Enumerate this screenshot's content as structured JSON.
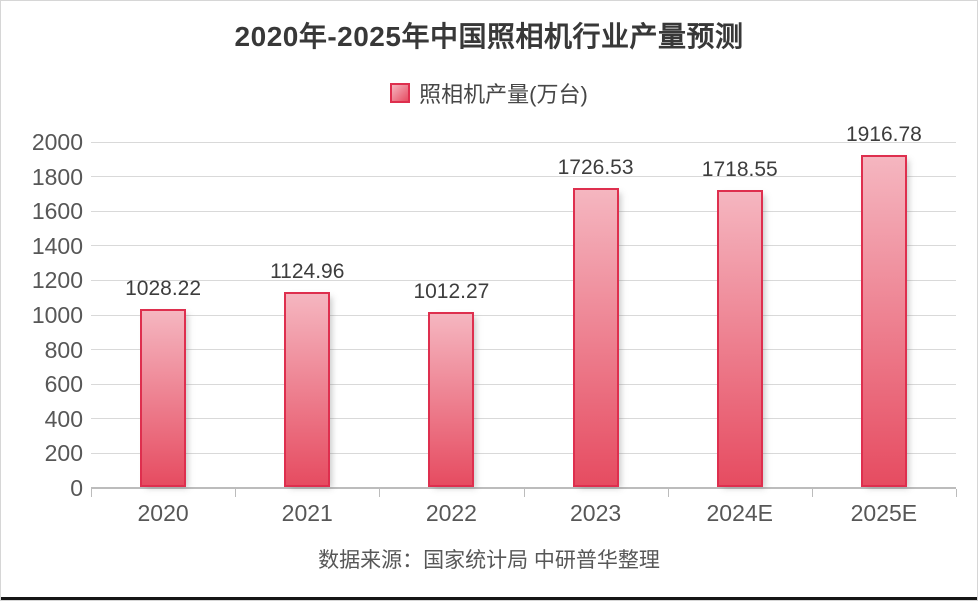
{
  "chart_data": {
    "type": "bar",
    "title": "2020年-2025年中国照相机行业产量预测",
    "legend": [
      {
        "label": "照相机产量(万台)"
      }
    ],
    "legend_position": "top",
    "categories": [
      "2020",
      "2021",
      "2022",
      "2023",
      "2024E",
      "2025E"
    ],
    "values": [
      1028.22,
      1124.96,
      1012.27,
      1726.53,
      1718.55,
      1916.78
    ],
    "value_labels": [
      "1028.22",
      "1124.96",
      "1012.27",
      "1726.53",
      "1718.55",
      "1916.78"
    ],
    "xlabel": "",
    "ylabel": "",
    "ylim": [
      0,
      2000
    ],
    "ytick_step": 200,
    "ytick_labels": [
      "0",
      "200",
      "400",
      "600",
      "800",
      "1000",
      "1200",
      "1400",
      "1600",
      "1800",
      "2000"
    ],
    "grid": true,
    "source": "数据来源：国家统计局 中研普华整理",
    "colors": {
      "bar_fill_top": "#f5b6c0",
      "bar_fill_bottom": "#e64c61",
      "bar_border": "#de2f4e",
      "gridline": "#d9d9d9",
      "axis_line": "#bcbcbc",
      "title_text": "#383838",
      "value_label_text": "#3d3d3d",
      "axis_label_text": "#575757",
      "legend_text": "#464646",
      "source_text": "#575757",
      "bottom_strip": "#161616"
    }
  }
}
